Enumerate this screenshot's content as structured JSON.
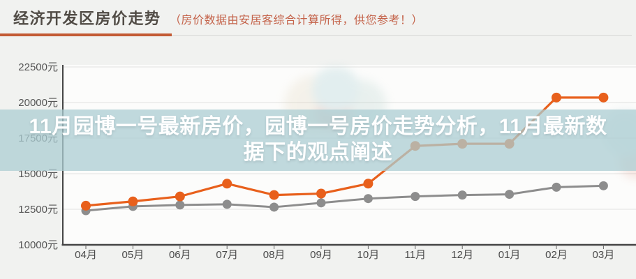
{
  "header": {
    "title": "经济开发区房价走势",
    "subtitle": "（房价数据由安居客综合计算所得，供您参考！）"
  },
  "overlay": {
    "line1": "11月园博一号最新房价，园博一号房价走势分析，11月最新数",
    "line2": "据下的观点阐述"
  },
  "chart_data": {
    "type": "line",
    "title": "经济开发区房价走势",
    "categories": [
      "04月",
      "05月",
      "06月",
      "07月",
      "08月",
      "09月",
      "10月",
      "11月",
      "12月",
      "01月",
      "02月",
      "03月"
    ],
    "series": [
      {
        "name": "orange-line",
        "color": "#e8601c",
        "point_radius": 7,
        "line_width": 3.2,
        "values": [
          12750,
          13050,
          13400,
          14300,
          13500,
          13600,
          14300,
          16950,
          17100,
          17100,
          20350,
          20350
        ]
      },
      {
        "name": "gray-line",
        "color": "#8d8d8d",
        "point_radius": 6.5,
        "line_width": 3,
        "values": [
          12400,
          12700,
          12800,
          12850,
          12650,
          12950,
          13250,
          13400,
          13500,
          13550,
          14050,
          14150
        ]
      }
    ],
    "y_tick_labels": [
      "22500元",
      "20000元",
      "17500元",
      "15000元",
      "12500元",
      "10000元"
    ],
    "ylim": [
      10000,
      22500
    ],
    "xlabel": "",
    "ylabel": "",
    "grid": true,
    "legend": "none"
  },
  "colors": {
    "page_bg": "#f1f2f0",
    "title_text": "#514c46",
    "subtitle_text": "#c4634a",
    "accent_rule": "#c35b35",
    "plot_bg": "#fcfcfb",
    "gridline": "#e2e2e0",
    "axis": "#454545",
    "axis_label": "#555555",
    "overlay_band": "rgba(172,205,211,0.74)"
  }
}
